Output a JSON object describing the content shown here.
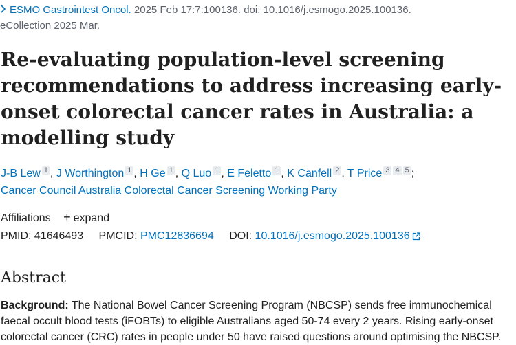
{
  "citation": {
    "journal": "ESMO Gastrointest Oncol.",
    "details_line1": " 2025 Feb 17:7:100136. doi: 10.1016/j.esmogo.2025.100136.",
    "details_line2": "eCollection 2025 Mar."
  },
  "article": {
    "title": "Re-evaluating population-level screening recommendations to address increasing early-onset colorectal cancer rates in Australia: a modelling study"
  },
  "authors": [
    {
      "name": "J-B Lew",
      "sups": [
        "1"
      ]
    },
    {
      "name": "J Worthington",
      "sups": [
        "1"
      ]
    },
    {
      "name": "H Ge",
      "sups": [
        "1"
      ]
    },
    {
      "name": "Q Luo",
      "sups": [
        "1"
      ]
    },
    {
      "name": "E Feletto",
      "sups": [
        "1"
      ]
    },
    {
      "name": "K Canfell",
      "sups": [
        "2"
      ]
    },
    {
      "name": "T Price",
      "sups": [
        "3",
        "4",
        "5"
      ]
    }
  ],
  "collective_author": "Cancer Council Australia Colorectal Cancer Screening Working Party",
  "affiliations": {
    "label": "Affiliations",
    "expand_label": "expand"
  },
  "identifiers": {
    "pmid_label": "PMID:",
    "pmid": "41646493",
    "pmcid_label": "PMCID:",
    "pmcid": "PMC12836694",
    "doi_label": "DOI:",
    "doi": "10.1016/j.esmogo.2025.100136"
  },
  "abstract": {
    "heading": "Abstract",
    "background_label": "Background:",
    "background_text": " The National Bowel Cancer Screening Program (NBCSP) sends free immunochemical faecal occult blood tests (iFOBTs) to eligible Australians aged 50-74 every 2 years. Rising early-onset colorectal cancer (CRC) rates in people under 50 have raised questions around optimising the NBCSP."
  },
  "colors": {
    "link": "#0071bc",
    "text": "#212121",
    "muted": "#5b616b"
  },
  "icons": {
    "chevron": "chevron-right-icon",
    "expand": "plus-icon",
    "external": "external-link-icon"
  }
}
